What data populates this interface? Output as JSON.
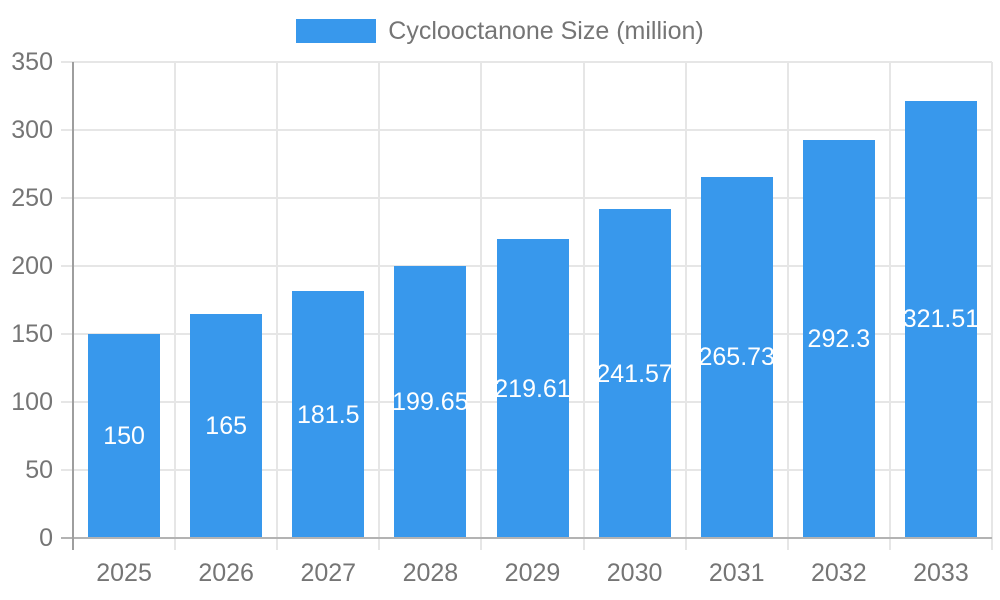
{
  "chart_data": {
    "type": "bar",
    "title": "",
    "series_name": "Cyclooctanone Size (million)",
    "categories": [
      "2025",
      "2026",
      "2027",
      "2028",
      "2029",
      "2030",
      "2031",
      "2032",
      "2033"
    ],
    "values": [
      150,
      165,
      181.5,
      199.65,
      219.61,
      241.57,
      265.73,
      292.3,
      321.51
    ],
    "value_labels": [
      "150",
      "165",
      "181.5",
      "199.65",
      "219.61",
      "241.57",
      "265.73",
      "292.3",
      "321.51"
    ],
    "xlabel": "",
    "ylabel": "",
    "ylim": [
      0,
      350
    ],
    "ytick_step": 50,
    "grid": true,
    "legend_position": "top",
    "colors": {
      "bar": "#3898ec",
      "bar_label": "#ffffff",
      "tick_label": "#757575",
      "legend_text": "#757575",
      "grid": "#e6e6e6",
      "axis": "#9e9e9e",
      "baseline": "#b3b3b3",
      "background": "#ffffff"
    }
  }
}
